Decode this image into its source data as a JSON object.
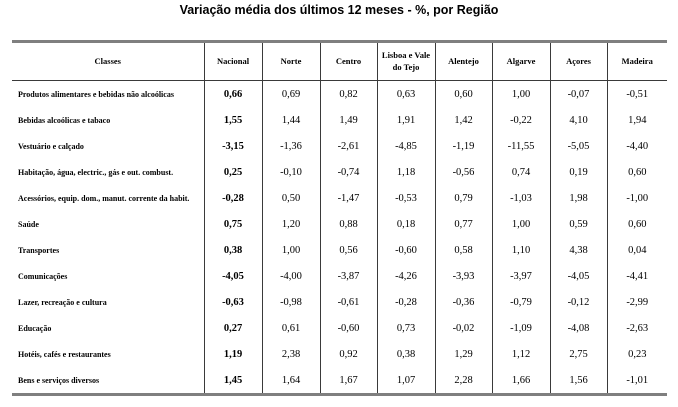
{
  "chart_data": {
    "type": "table",
    "title": "Variação média dos últimos 12 meses - %, por Região",
    "columns": [
      "Classes",
      "Nacional",
      "Norte",
      "Centro",
      "Lisboa e Vale do Tejo",
      "Alentejo",
      "Algarve",
      "Açores",
      "Madeira"
    ],
    "rows": [
      {
        "label": "Produtos alimentares e bebidas não alcoólicas",
        "values": [
          "0,66",
          "0,69",
          "0,82",
          "0,63",
          "0,60",
          "1,00",
          "-0,07",
          "-0,51"
        ]
      },
      {
        "label": "Bebidas alcoólicas e tabaco",
        "values": [
          "1,55",
          "1,44",
          "1,49",
          "1,91",
          "1,42",
          "-0,22",
          "4,10",
          "1,94"
        ]
      },
      {
        "label": "Vestuário e calçado",
        "values": [
          "-3,15",
          "-1,36",
          "-2,61",
          "-4,85",
          "-1,19",
          "-11,55",
          "-5,05",
          "-4,40"
        ]
      },
      {
        "label": "Habitação, água, electric., gás e out. combust.",
        "values": [
          "0,25",
          "-0,10",
          "-0,74",
          "1,18",
          "-0,56",
          "0,74",
          "0,19",
          "0,60"
        ]
      },
      {
        "label": "Acessórios, equip. dom., manut. corrente da habit.",
        "values": [
          "-0,28",
          "0,50",
          "-1,47",
          "-0,53",
          "0,79",
          "-1,03",
          "1,98",
          "-1,00"
        ]
      },
      {
        "label": "Saúde",
        "values": [
          "0,75",
          "1,20",
          "0,88",
          "0,18",
          "0,77",
          "1,00",
          "0,59",
          "0,60"
        ]
      },
      {
        "label": "Transportes",
        "values": [
          "0,38",
          "1,00",
          "0,56",
          "-0,60",
          "0,58",
          "1,10",
          "4,38",
          "0,04"
        ]
      },
      {
        "label": "Comunicações",
        "values": [
          "-4,05",
          "-4,00",
          "-3,87",
          "-4,26",
          "-3,93",
          "-3,97",
          "-4,05",
          "-4,41"
        ]
      },
      {
        "label": "Lazer, recreação e cultura",
        "values": [
          "-0,63",
          "-0,98",
          "-0,61",
          "-0,28",
          "-0,36",
          "-0,79",
          "-0,12",
          "-2,99"
        ]
      },
      {
        "label": "Educação",
        "values": [
          "0,27",
          "0,61",
          "-0,60",
          "0,73",
          "-0,02",
          "-1,09",
          "-4,08",
          "-2,63"
        ]
      },
      {
        "label": "Hotéis, cafés e restaurantes",
        "values": [
          "1,19",
          "2,38",
          "0,92",
          "0,38",
          "1,29",
          "1,12",
          "2,75",
          "0,23"
        ]
      },
      {
        "label": "Bens e serviços diversos",
        "values": [
          "1,45",
          "1,64",
          "1,67",
          "1,07",
          "2,28",
          "1,66",
          "1,56",
          "-1,01"
        ]
      }
    ],
    "layout": {
      "legend": "none",
      "grid": "vertical-rules-only",
      "border_top_color": "#7f7f7f",
      "border_bottom_color": "#7f7f7f",
      "rule_color": "#3a3a3a",
      "nacional_column_bold": true
    }
  }
}
